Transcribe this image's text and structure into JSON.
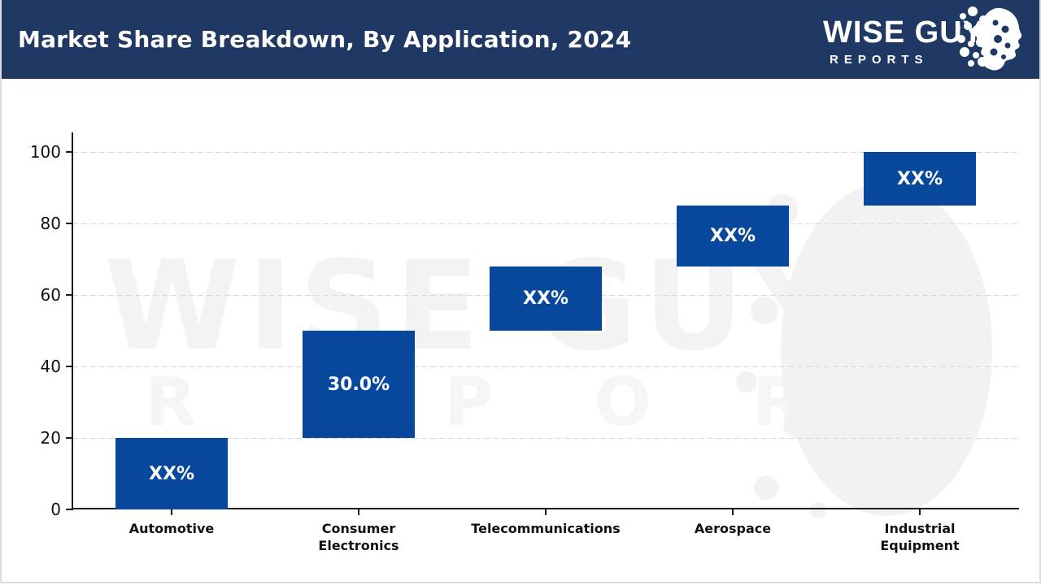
{
  "header": {
    "title": "Market Share Breakdown, By Application, 2024",
    "logo": {
      "brand": "WISE GUY",
      "sub": "R E P O R T S",
      "icon": "dotted-head-profile"
    }
  },
  "watermark": {
    "line1": "WISE GUY",
    "line2": "R E P O R T S"
  },
  "chart_data": {
    "type": "bar",
    "variant": "waterfall",
    "title": "Market Share Breakdown, By Application, 2024",
    "xlabel": "",
    "ylabel": "",
    "ylim": [
      0,
      100
    ],
    "yticks": [
      0,
      20,
      40,
      60,
      80,
      100
    ],
    "grid": "horizontal-dashed",
    "legend": "none",
    "bar_color": "#08489c",
    "bar_label_color": "#ffffff",
    "segments": [
      {
        "category": "Automotive",
        "display": "Automotive",
        "start": 0,
        "end": 20,
        "label": "XX%"
      },
      {
        "category": "Consumer Electronics",
        "display": "Consumer\nElectronics",
        "start": 20,
        "end": 50,
        "label": "30.0%"
      },
      {
        "category": "Telecommunications",
        "display": "Telecommunications",
        "start": 50,
        "end": 68,
        "label": "XX%"
      },
      {
        "category": "Aerospace",
        "display": "Aerospace",
        "start": 68,
        "end": 85,
        "label": "XX%"
      },
      {
        "category": "Industrial Equipment",
        "display": "Industrial\nEquipment",
        "start": 85,
        "end": 100,
        "label": "XX%"
      }
    ]
  },
  "colors": {
    "header_bg": "#1f3864",
    "bar": "#08489c",
    "grid": "#d8d8d8",
    "axis": "#1c1c1c",
    "watermark": "#f3f3f3"
  }
}
